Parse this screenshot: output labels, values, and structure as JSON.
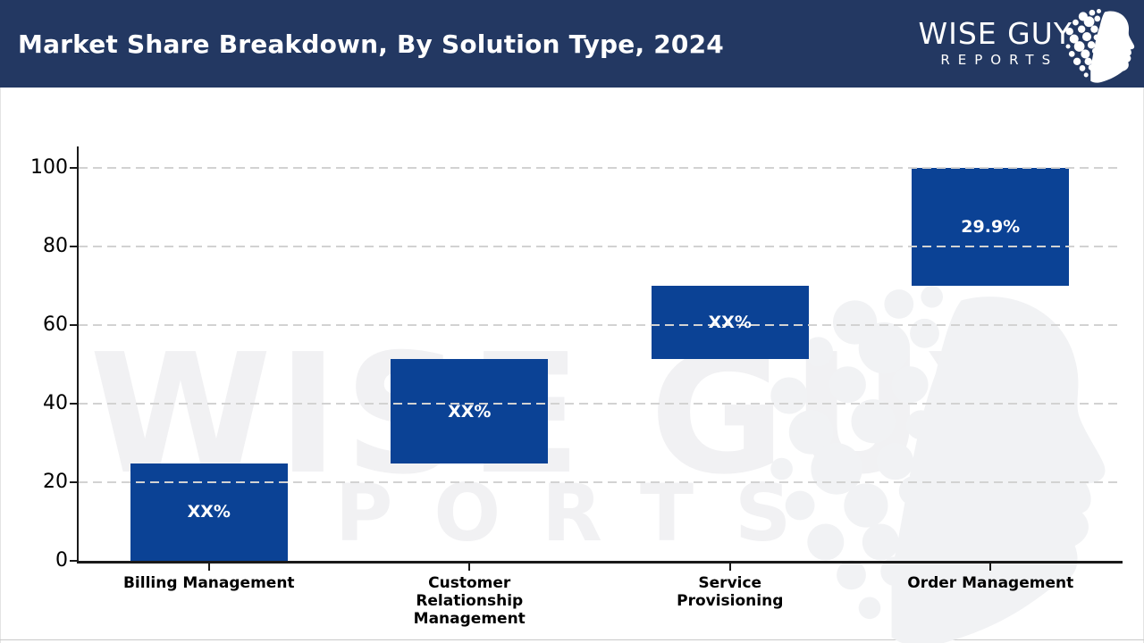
{
  "header": {
    "title": "Market Share Breakdown, By Solution Type, 2024",
    "logo": {
      "line1": "WISE GUY",
      "line2": "REPORTS"
    }
  },
  "watermark": {
    "line1": "WISE GUY",
    "line2": "REPORTS"
  },
  "chart_data": {
    "type": "bar",
    "subtype": "waterfall-floating-bars",
    "title": "Market Share Breakdown, By Solution Type, 2024",
    "xlabel": "",
    "ylabel": "",
    "categories": [
      "Billing Management",
      "Customer Relationship Management",
      "Service Provisioning",
      "Order Management"
    ],
    "category_label_lines": [
      [
        "Billing Management"
      ],
      [
        "Customer",
        "Relationship",
        "Management"
      ],
      [
        "Service",
        "Provisioning"
      ],
      [
        "Order Management"
      ]
    ],
    "segments": [
      {
        "category": "Billing Management",
        "start": 0,
        "end": 24.8,
        "label": "XX%"
      },
      {
        "category": "Customer Relationship Management",
        "start": 24.8,
        "end": 51.3,
        "label": "XX%"
      },
      {
        "category": "Service Provisioning",
        "start": 51.3,
        "end": 70.1,
        "label": "XX%"
      },
      {
        "category": "Order Management",
        "start": 70.1,
        "end": 100,
        "label": "29.9%"
      }
    ],
    "yticks": [
      0,
      20,
      40,
      60,
      80,
      100
    ],
    "ylim": [
      0,
      105.5
    ],
    "grid": true,
    "gridline_style": "dashed",
    "legend": "none",
    "bar_color": "#0b4295",
    "grid_color": "#d2d2d2",
    "axis_color": "#1a1a1a",
    "header_color": "#233862",
    "watermark_color": "#f1f1f3"
  }
}
